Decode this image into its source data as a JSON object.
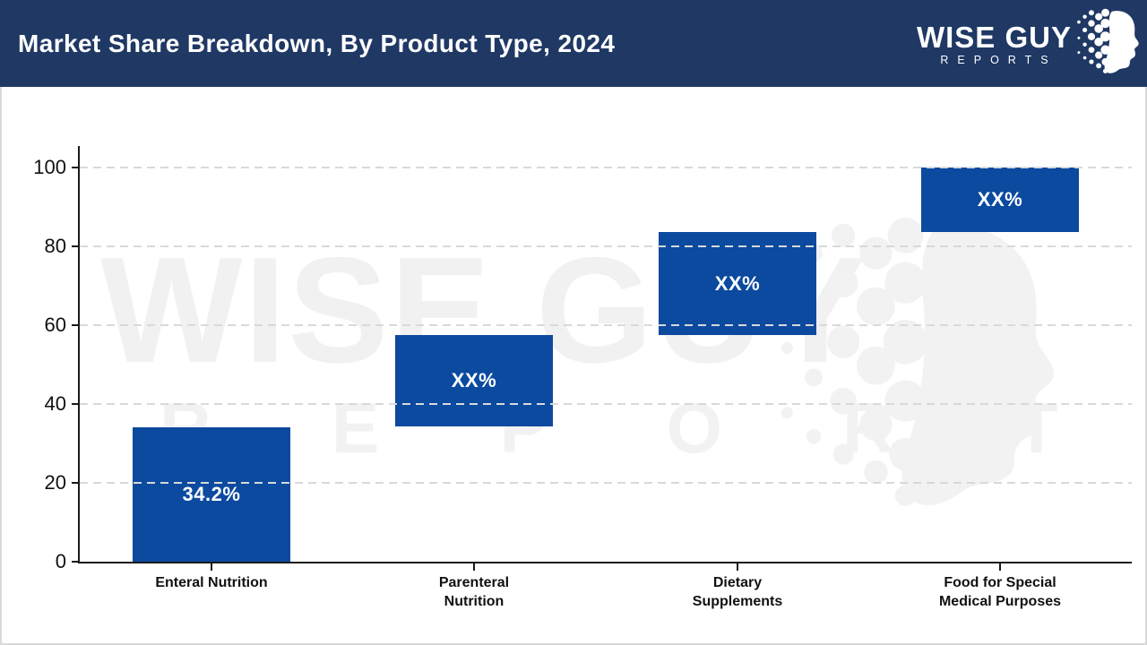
{
  "header": {
    "title": "Market Share Breakdown, By Product Type, 2024",
    "logo_line1": "WISE GUY",
    "logo_line2": "REPORTS"
  },
  "watermark": {
    "line1": "WISE GUY",
    "line2": "R E P O R T S"
  },
  "chart_data": {
    "type": "bar",
    "subtype": "waterfall",
    "title": "Market Share Breakdown, By Product Type, 2024",
    "categories": [
      "Enteral Nutrition",
      "Parenteral\nNutrition",
      "Dietary\nSupplements",
      "Food for Special\nMedical Purposes"
    ],
    "segments": [
      {
        "category": "Enteral Nutrition",
        "start": 0,
        "end": 34.2,
        "label": "34.2%"
      },
      {
        "category": "Parenteral Nutrition",
        "start": 34.2,
        "end": 57.4,
        "label": "XX%"
      },
      {
        "category": "Dietary Supplements",
        "start": 57.4,
        "end": 83.6,
        "label": "XX%"
      },
      {
        "category": "Food for Special Medical Purposes",
        "start": 83.6,
        "end": 100,
        "label": "XX%"
      }
    ],
    "ylim": [
      0,
      100
    ],
    "yticks": [
      0,
      20,
      40,
      60,
      80,
      100
    ],
    "xlabel": "",
    "ylabel": "",
    "grid": "horizontal-dashed",
    "legend": "none"
  },
  "colors": {
    "header_bg": "#1f3864",
    "bar_fill": "#0b4a9f",
    "bar_label": "#ffffff",
    "axis": "#1a1a1a",
    "gridline": "#d9d9d9",
    "watermark": "#f1f1f1",
    "text": "#111111"
  }
}
